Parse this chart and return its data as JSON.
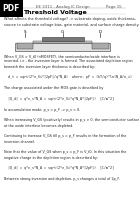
{
  "header_left": "EE 3311 - Analog IC Design",
  "header_right": "Page 15",
  "title": "Threshold Voltage",
  "pdf_label": "PDF",
  "bg_color": "#ffffff",
  "text_color": "#222222",
  "header_color": "#555555",
  "title_color": "#000000",
  "pdf_bg": "#000000",
  "pdf_text": "#ffffff"
}
